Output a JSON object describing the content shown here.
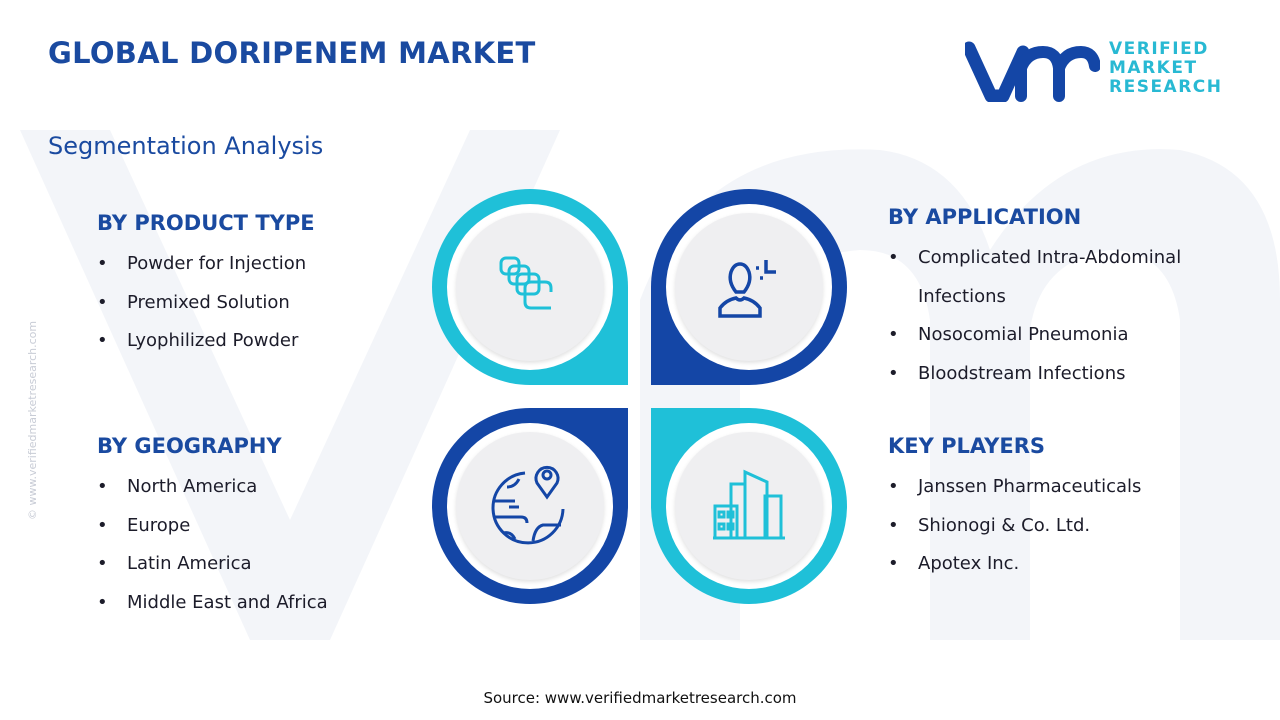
{
  "header": {
    "title": "GLOBAL DORIPENEM MARKET",
    "subtitle": "Segmentation Analysis"
  },
  "logo": {
    "mark": "vmr",
    "line1": "VERIFIED",
    "line2": "MARKET",
    "line3": "RESEARCH"
  },
  "side_watermark": "© www.verifiedmarketresearch.com",
  "colors": {
    "navy": "#1446a6",
    "cyan": "#1fc0d8",
    "title": "#1a4aa0"
  },
  "sections": {
    "product_type": {
      "title": "BY PRODUCT TYPE",
      "items": [
        "Powder for Injection",
        "Premixed Solution",
        "Lyophilized Powder"
      ],
      "icon": "capsules-icon"
    },
    "application": {
      "title": "BY APPLICATION",
      "items": [
        "Complicated Intra-Abdominal",
        "Infections",
        "Nosocomial Pneumonia",
        "Bloodstream Infections"
      ],
      "icon": "user-icon"
    },
    "geography": {
      "title": "BY GEOGRAPHY",
      "items": [
        "North America",
        "Europe",
        "Latin America",
        "Middle East and Africa"
      ],
      "icon": "globe-pin-icon"
    },
    "key_players": {
      "title": "KEY PLAYERS",
      "items": [
        "Janssen Pharmaceuticals",
        "Shionogi & Co. Ltd.",
        "Apotex Inc."
      ],
      "icon": "buildings-icon"
    }
  },
  "footer": {
    "source": "Source: www.verifiedmarketresearch.com"
  }
}
